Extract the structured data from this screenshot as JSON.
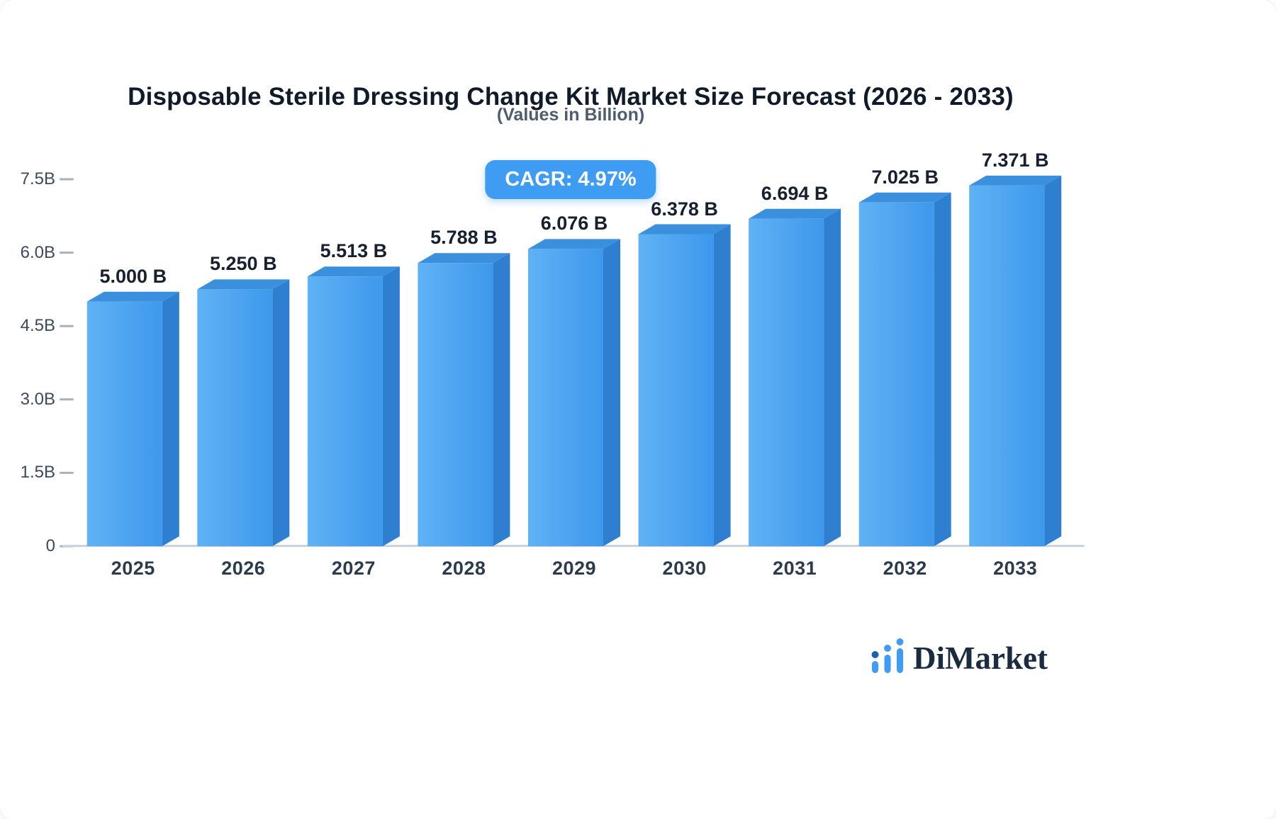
{
  "badge": {
    "label": "CAGR: 4.97%"
  },
  "logo": {
    "text": "DiMarket",
    "icon": "bar-chart-dots-icon"
  },
  "chart_data": {
    "type": "bar",
    "title": "Disposable Sterile Dressing Change Kit Market Size Forecast (2026 - 2033)",
    "subtitle": "(Values in Billion)",
    "categories": [
      "2025",
      "2026",
      "2027",
      "2028",
      "2029",
      "2030",
      "2031",
      "2032",
      "2033"
    ],
    "values": [
      5.0,
      5.25,
      5.513,
      5.788,
      6.076,
      6.378,
      6.694,
      7.025,
      7.371
    ],
    "value_labels": [
      "5.000 B",
      "5.250 B",
      "5.513 B",
      "5.788 B",
      "6.076 B",
      "6.378 B",
      "6.694 B",
      "7.025 B",
      "7.371 B"
    ],
    "cagr": "4.97%",
    "xlabel": "",
    "ylabel": "",
    "ylim": [
      0,
      7.5
    ],
    "yticks": [
      {
        "value": 0,
        "label": "0"
      },
      {
        "value": 1.5,
        "label": "1.5B"
      },
      {
        "value": 3.0,
        "label": "3.0B"
      },
      {
        "value": 4.5,
        "label": "4.5B"
      },
      {
        "value": 6.0,
        "label": "6.0B"
      },
      {
        "value": 7.5,
        "label": "7.5B"
      }
    ],
    "grid": false,
    "legend": "none",
    "colors": {
      "bar_front_light": "#5FB2F4",
      "bar_front_dark": "#3E98EC",
      "bar_side": "#2E7FD0",
      "bar_top": "#3A90DC",
      "axis_line": "#CDD3DA",
      "tick": "#A9B2BC",
      "badge_bg": "#3E9CF2",
      "badge_text": "#FFFFFF",
      "title_text": "#101B29",
      "subtitle_text": "#4E5D6E",
      "value_label_text": "#16202E",
      "axis_label_text": "#3C4A5A",
      "year_label_text": "#2B3B4E",
      "logo_text": "#1B2B40",
      "logo_icon": "#3E9CF2",
      "logo_icon_dark": "#1B5FB8"
    }
  }
}
